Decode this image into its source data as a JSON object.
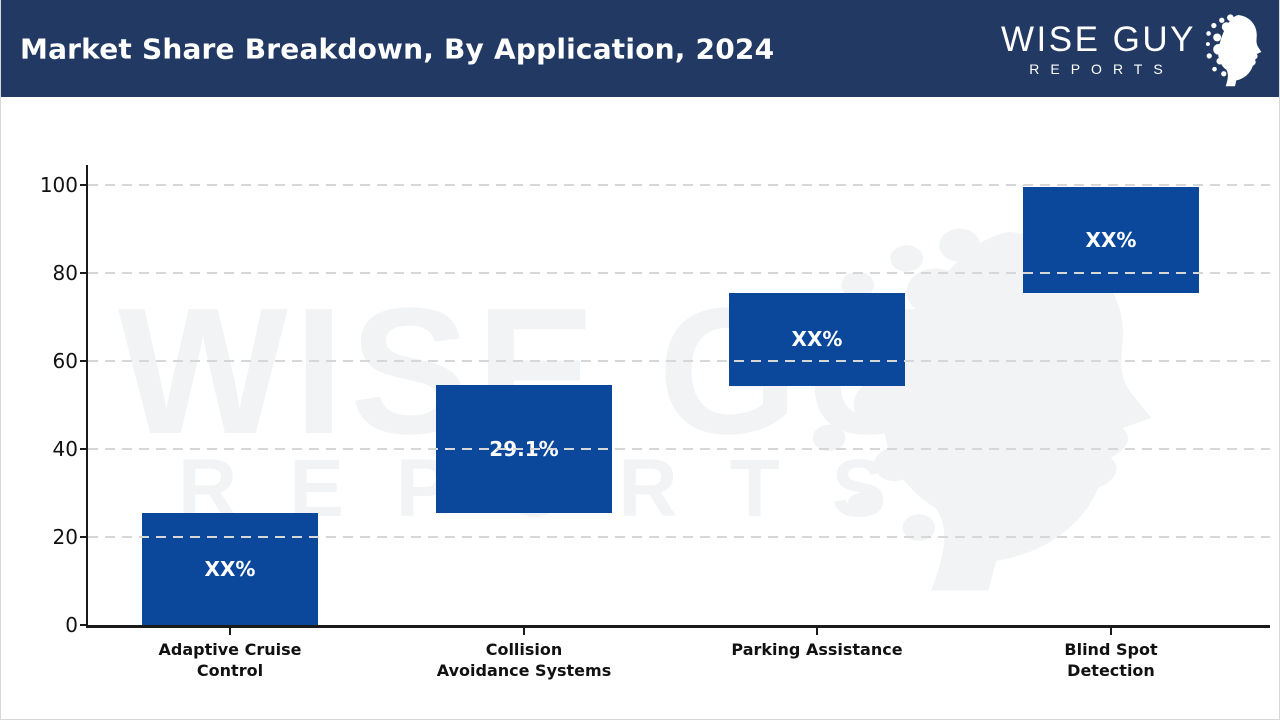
{
  "header": {
    "title": "Market Share Breakdown, By Application, 2024",
    "background_color": "#223a63",
    "text_color": "#ffffff",
    "brand": {
      "name": "WISE GUY",
      "subtitle": "REPORTS"
    }
  },
  "watermark": {
    "line1": "WISE GUY",
    "line2": "REPORTS",
    "color": "#f2f3f5"
  },
  "chart_data": {
    "type": "bar",
    "subtype": "waterfall",
    "title": "Market Share Breakdown, By Application, 2024",
    "categories": [
      "Adaptive Cruise Control",
      "Collision Avoidance Systems",
      "Parking Assistance",
      "Blind Spot Detection"
    ],
    "category_label_lines": [
      [
        "Adaptive Cruise",
        "Control"
      ],
      [
        "Collision",
        "Avoidance Systems"
      ],
      [
        "Parking Assistance"
      ],
      [
        "Blind Spot",
        "Detection"
      ]
    ],
    "bars": [
      {
        "category": "Adaptive Cruise Control",
        "start": 0,
        "end": 25.5,
        "label": "XX%"
      },
      {
        "category": "Collision Avoidance Systems",
        "start": 25.4,
        "end": 54.5,
        "label": "29.1%",
        "value": 29.1
      },
      {
        "category": "Parking Assistance",
        "start": 54.4,
        "end": 75.5,
        "label": "XX%"
      },
      {
        "category": "Blind Spot Detection",
        "start": 75.5,
        "end": 99.6,
        "label": "XX%"
      }
    ],
    "ylim": [
      0,
      100
    ],
    "yticks": [
      0,
      20,
      40,
      60,
      80,
      100
    ],
    "xlabel": "",
    "ylabel": "",
    "bar_color": "#0b489c",
    "bar_label_color": "#ffffff",
    "grid": "horizontal dashed",
    "legend": "none"
  }
}
